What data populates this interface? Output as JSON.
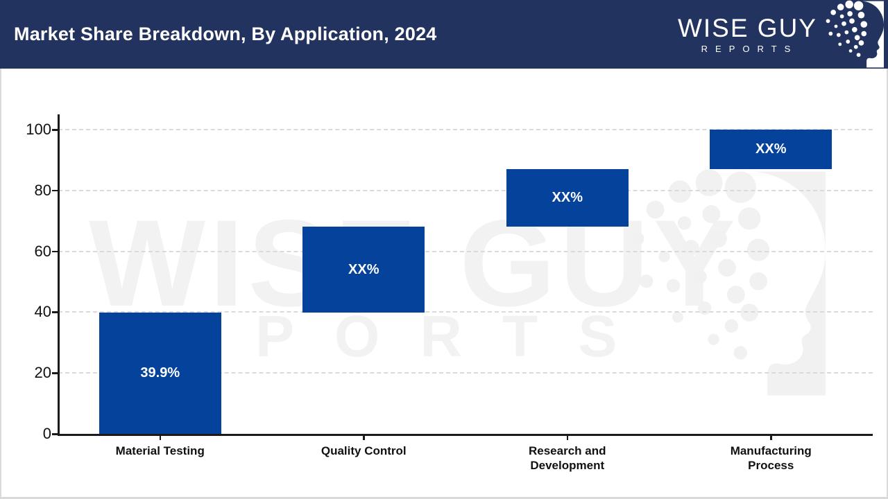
{
  "header": {
    "title": "Market Share Breakdown, By Application, 2024",
    "bg_color": "#22335f",
    "logo": {
      "line1": "WISE GUY",
      "line2": "REPORTS"
    }
  },
  "watermark": {
    "line1": "WISE GUY",
    "line2": "PORTS"
  },
  "chart_data": {
    "type": "bar",
    "subtype": "waterfall",
    "title": "Market Share Breakdown, By Application, 2024",
    "categories": [
      "Material Testing",
      "Quality Control",
      "Research and Development",
      "Manufacturing Process"
    ],
    "segments": [
      {
        "category": "Material Testing",
        "start": 0,
        "end": 39.9,
        "label": "39.9%"
      },
      {
        "category": "Quality Control",
        "start": 39.9,
        "end": 68,
        "label": "XX%"
      },
      {
        "category": "Research and Development",
        "start": 68,
        "end": 87,
        "label": "XX%"
      },
      {
        "category": "Manufacturing Process",
        "start": 87,
        "end": 100,
        "label": "XX%"
      }
    ],
    "xlabel": "",
    "ylabel": "",
    "y_ticks": [
      0,
      20,
      40,
      60,
      80,
      100
    ],
    "ylim": [
      0,
      105
    ],
    "grid": "horizontal-dashed",
    "legend": "none",
    "bar_color": "#05429b",
    "bar_label_color": "#ffffff",
    "axis_color": "#1a1a1a",
    "gridline_color": "#dadada"
  }
}
